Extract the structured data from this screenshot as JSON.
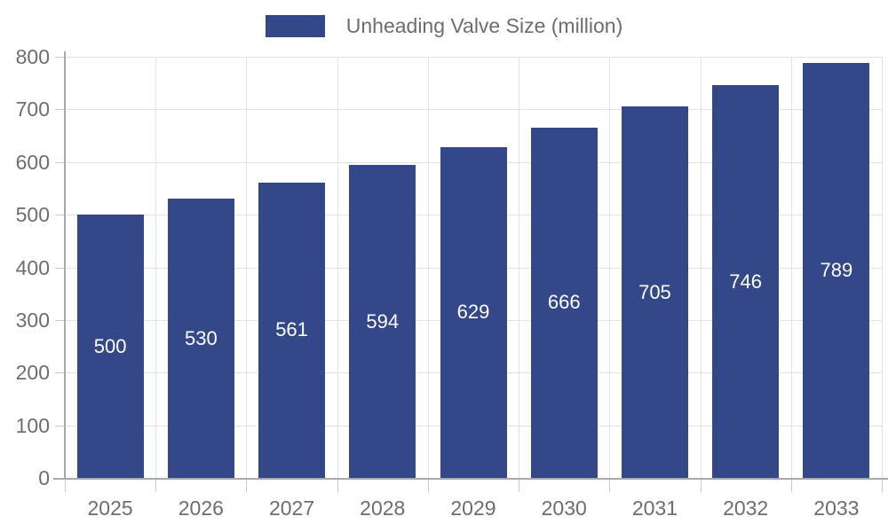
{
  "chart_data": {
    "type": "bar",
    "legend": "Unheading Valve Size (million)",
    "categories": [
      "2025",
      "2026",
      "2027",
      "2028",
      "2029",
      "2030",
      "2031",
      "2032",
      "2033"
    ],
    "values": [
      500,
      530,
      561,
      594,
      629,
      666,
      705,
      746,
      789
    ],
    "value_labels": [
      "500",
      "530",
      "561",
      "594",
      "629",
      "666",
      "705",
      "746",
      "789"
    ],
    "ylim": [
      0,
      800
    ],
    "ytick_step": 100,
    "ytick_labels": [
      "0",
      "100",
      "200",
      "300",
      "400",
      "500",
      "600",
      "700",
      "800"
    ],
    "grid": "both",
    "legend_position": "top-center",
    "value_label_position": "inside-center",
    "colors": {
      "bar": "#344889",
      "value_label": "#ffffff",
      "axis_text": "#6d6d6d",
      "gridline": "#e2e2e2",
      "axis_line": "#a9a9a9",
      "tick": "#cacaca",
      "background": "#ffffff"
    }
  }
}
